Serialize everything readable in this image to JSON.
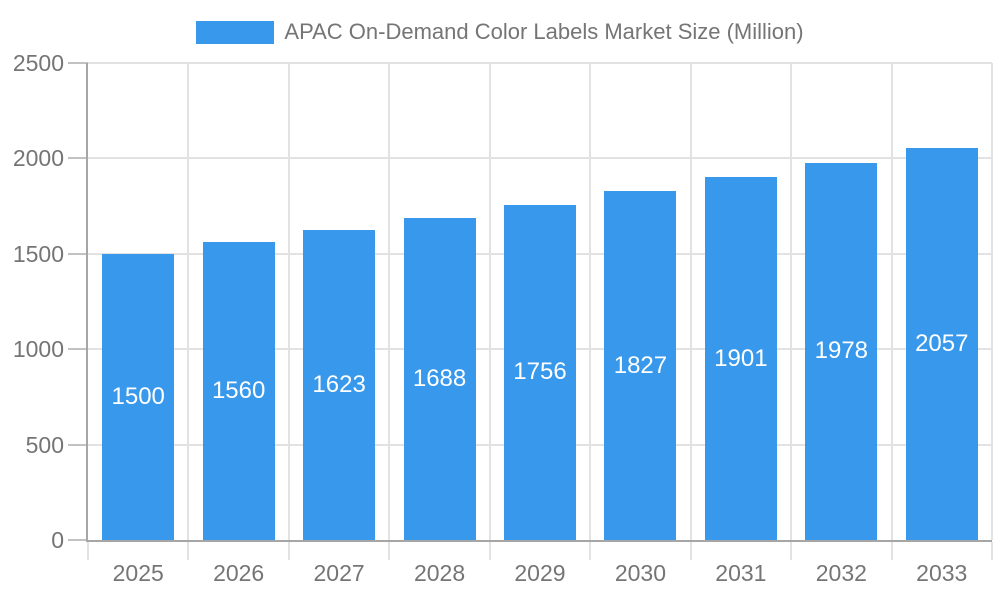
{
  "chart_data": {
    "type": "bar",
    "title": "APAC On-Demand Color Labels Market Size (Million)",
    "legend_entries": [
      "APAC On-Demand Color Labels Market Size (Million)"
    ],
    "legend_position": "top",
    "categories": [
      "2025",
      "2026",
      "2027",
      "2028",
      "2029",
      "2030",
      "2031",
      "2032",
      "2033"
    ],
    "values": [
      1500,
      1560,
      1623,
      1688,
      1756,
      1827,
      1901,
      1978,
      2057
    ],
    "value_labels": [
      "1500",
      "1560",
      "1623",
      "1688",
      "1756",
      "1827",
      "1901",
      "1978",
      "2057"
    ],
    "xlabel": "",
    "ylabel": "",
    "ylim": [
      0,
      2500
    ],
    "y_ticks": [
      0,
      500,
      1000,
      1500,
      2000,
      2500
    ],
    "grid": true,
    "colors": {
      "bar": "#3898EC",
      "value_label": "#ffffff",
      "axis_text": "#757575",
      "grid_line": "#e2e2e2",
      "axis_line": "#a6a6a6",
      "y_tick_mark": "#c2c2c2",
      "x_tick_mark": "#e2e2e2",
      "background": "#ffffff"
    }
  }
}
